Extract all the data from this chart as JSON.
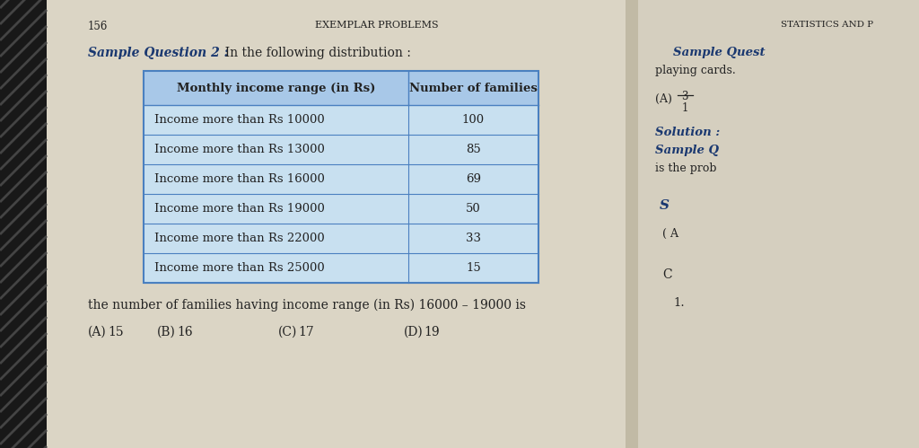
{
  "page_number": "156",
  "header_center": "EXEMPLAR PROBLEMS",
  "right_header": "STATISTICS AND P",
  "question_label": "Sample Question 2 :",
  "question_text": "  In the following distribution :",
  "table_col1_header": "Monthly income range (in Rs)",
  "table_col2_header": "Number of families",
  "table_rows": [
    [
      "Income more than Rs 10000",
      "100"
    ],
    [
      "Income more than Rs 13000",
      "85"
    ],
    [
      "Income more than Rs 16000",
      "69"
    ],
    [
      "Income more than Rs 19000",
      "50"
    ],
    [
      "Income more than Rs 22000",
      "33"
    ],
    [
      "Income more than Rs 25000",
      "15"
    ]
  ],
  "footer_text": "the number of families having income range (in Rs) 16000 – 19000 is",
  "options_labels": [
    "(A)",
    "(B)",
    "(C)",
    "(D)"
  ],
  "options_values": [
    "15",
    "16",
    "17",
    "19"
  ],
  "left_strip_color": "#1a1a1a",
  "left_strip_color2": "#3a3a3a",
  "left_page_bg": "#dbd5c5",
  "right_page_bg": "#d5cfbf",
  "table_header_bg": "#a8c8e8",
  "table_cell_bg": "#c8e0f0",
  "table_border": "#4a80c0",
  "text_dark": "#222222",
  "text_blue": "#1a3870",
  "text_gray": "#555555",
  "right_blue": "#1a3870",
  "gutter_color": "#b0a890"
}
